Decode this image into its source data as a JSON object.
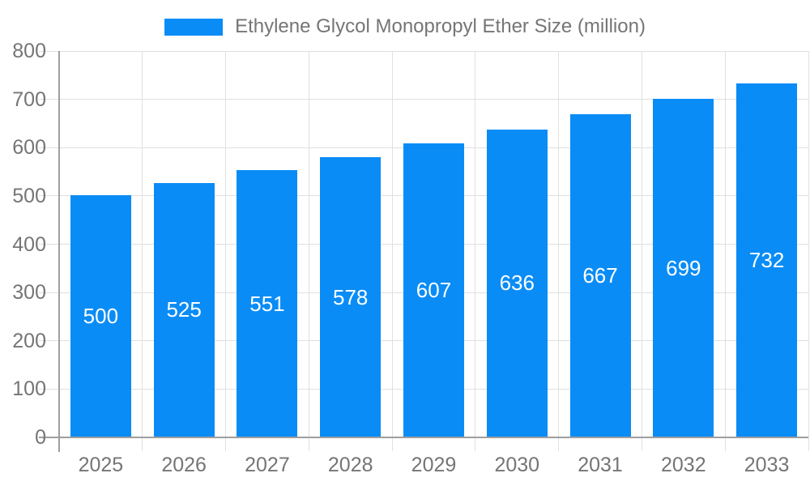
{
  "legend": {
    "label": "Ethylene Glycol Monopropyl Ether Size (million)"
  },
  "chart_data": {
    "type": "bar",
    "title": "Ethylene Glycol Monopropyl Ether Size (million)",
    "categories": [
      "2025",
      "2026",
      "2027",
      "2028",
      "2029",
      "2030",
      "2031",
      "2032",
      "2033"
    ],
    "values": [
      500,
      525,
      551,
      578,
      607,
      636,
      667,
      699,
      732
    ],
    "xlabel": "",
    "ylabel": "",
    "ylim": [
      0,
      800
    ],
    "yticks": [
      0,
      100,
      200,
      300,
      400,
      500,
      600,
      700,
      800
    ],
    "grid": true,
    "legend_position": "top-center",
    "bar_labels_inside": true,
    "colors": {
      "bar": "#0a8cf6",
      "grid": "#e0e0e0",
      "axis_line": "#9e9e9e",
      "axis_text": "#757575",
      "bar_label": "#ffffff",
      "background": "#ffffff"
    }
  }
}
